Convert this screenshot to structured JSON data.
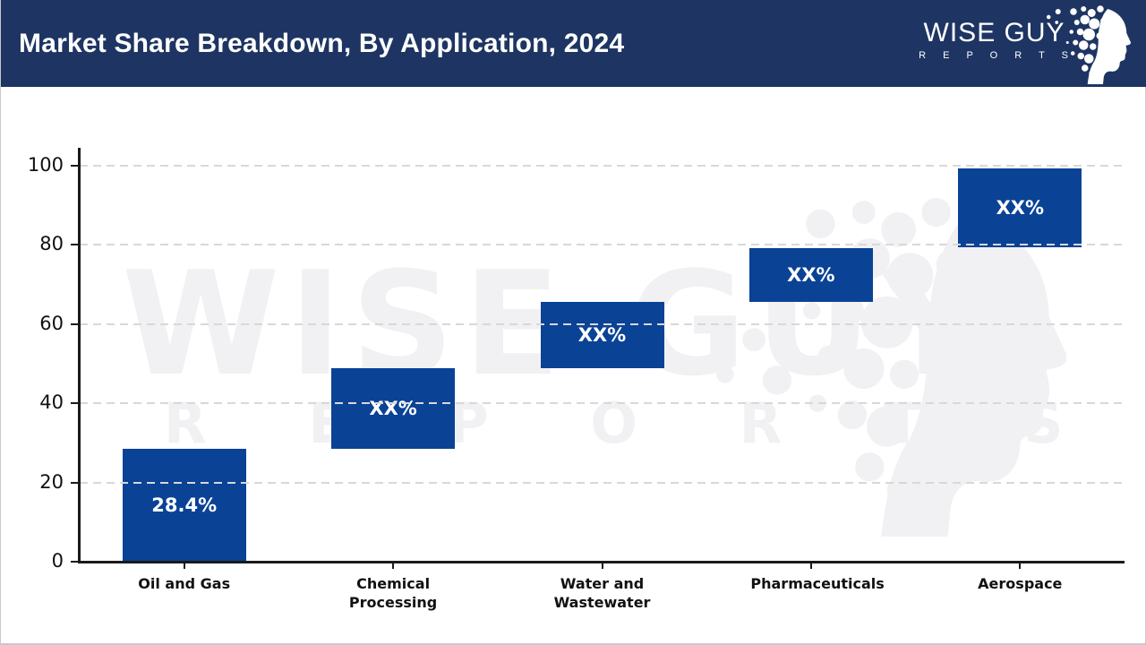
{
  "header": {
    "title": "Market Share Breakdown, By Application, 2024",
    "bg_color": "#1e3563",
    "logo": {
      "name": "WISE GUY",
      "subtitle": "R E P O R T S"
    }
  },
  "watermark": {
    "line1": "WISE GUY",
    "line2": "R E P O R T S"
  },
  "chart_data": {
    "type": "bar",
    "subtype": "waterfall-floating-bars",
    "title": "Market Share Breakdown, By Application, 2024",
    "xlabel": "",
    "ylabel": "",
    "categories": [
      "Oil and Gas",
      "Chemical Processing",
      "Water and Wastewater",
      "Pharmaceuticals",
      "Aerospace"
    ],
    "segments": [
      {
        "category": "Oil and Gas",
        "start": 0,
        "end": 28.4,
        "label": "28.4%"
      },
      {
        "category": "Chemical Processing",
        "start": 28.4,
        "end": 48.9,
        "label": "XX%"
      },
      {
        "category": "Water and Wastewater",
        "start": 48.9,
        "end": 65.6,
        "label": "XX%"
      },
      {
        "category": "Pharmaceuticals",
        "start": 65.6,
        "end": 79.1,
        "label": "XX%"
      },
      {
        "category": "Aerospace",
        "start": 79.4,
        "end": 99.4,
        "label": "XX%"
      }
    ],
    "yticks": [
      0,
      20,
      40,
      60,
      80,
      100
    ],
    "ylim": [
      0,
      104.5
    ],
    "grid": "horizontal-dashed, drawn above bars",
    "legend": "none",
    "bar_color": "#0a4296",
    "bar_label_color": "#ffffff"
  }
}
